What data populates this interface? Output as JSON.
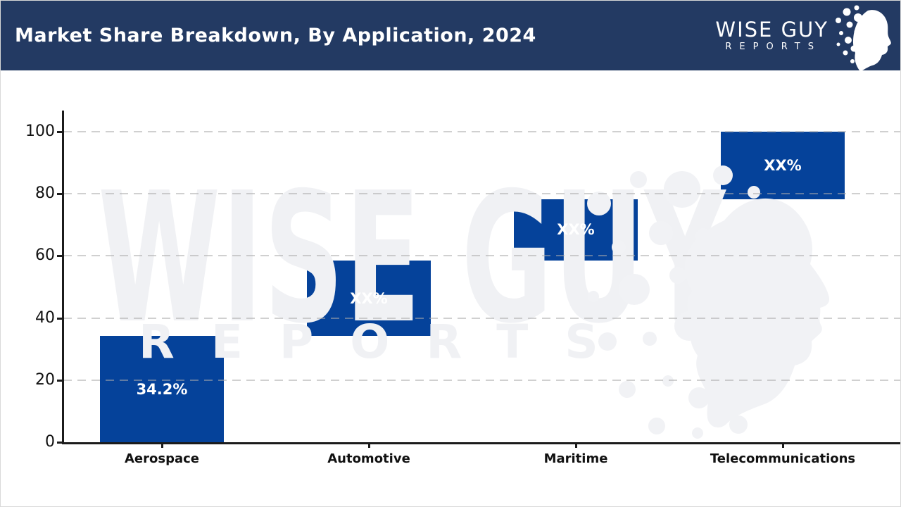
{
  "header": {
    "title": "Market Share Breakdown, By Application, 2024",
    "bg_color": "#233a63",
    "brand": {
      "line1": "WISE GUY",
      "line2": "REPORTS"
    }
  },
  "watermark": {
    "line1": "WISE GUY",
    "line2": "REPORTS"
  },
  "chart_data": {
    "type": "bar",
    "subtype": "waterfall",
    "title": "Market Share Breakdown, By Application, 2024",
    "xlabel": "",
    "ylabel": "",
    "categories": [
      "Aerospace",
      "Automotive",
      "Maritime",
      "Telecommunications"
    ],
    "segments": [
      {
        "category": "Aerospace",
        "start": 0,
        "end": 34.2,
        "label": "34.2%"
      },
      {
        "category": "Automotive",
        "start": 34.2,
        "end": 58.5,
        "label": "XX%"
      },
      {
        "category": "Maritime",
        "start": 58.5,
        "end": 78.3,
        "label": "XX%"
      },
      {
        "category": "Telecommunications",
        "start": 78.3,
        "end": 100,
        "label": "XX%"
      }
    ],
    "ylim": [
      0,
      100
    ],
    "yticks": [
      0,
      20,
      40,
      60,
      80,
      100
    ],
    "grid": "dashed horizontal, drawn over bars",
    "legend": "none",
    "bar_color": "#05429a",
    "value_label_color": "#ffffff",
    "axis_color": "#1b1b1b",
    "gridline_color": "#d8d8d8",
    "watermark_color": "#f0f1f4"
  }
}
